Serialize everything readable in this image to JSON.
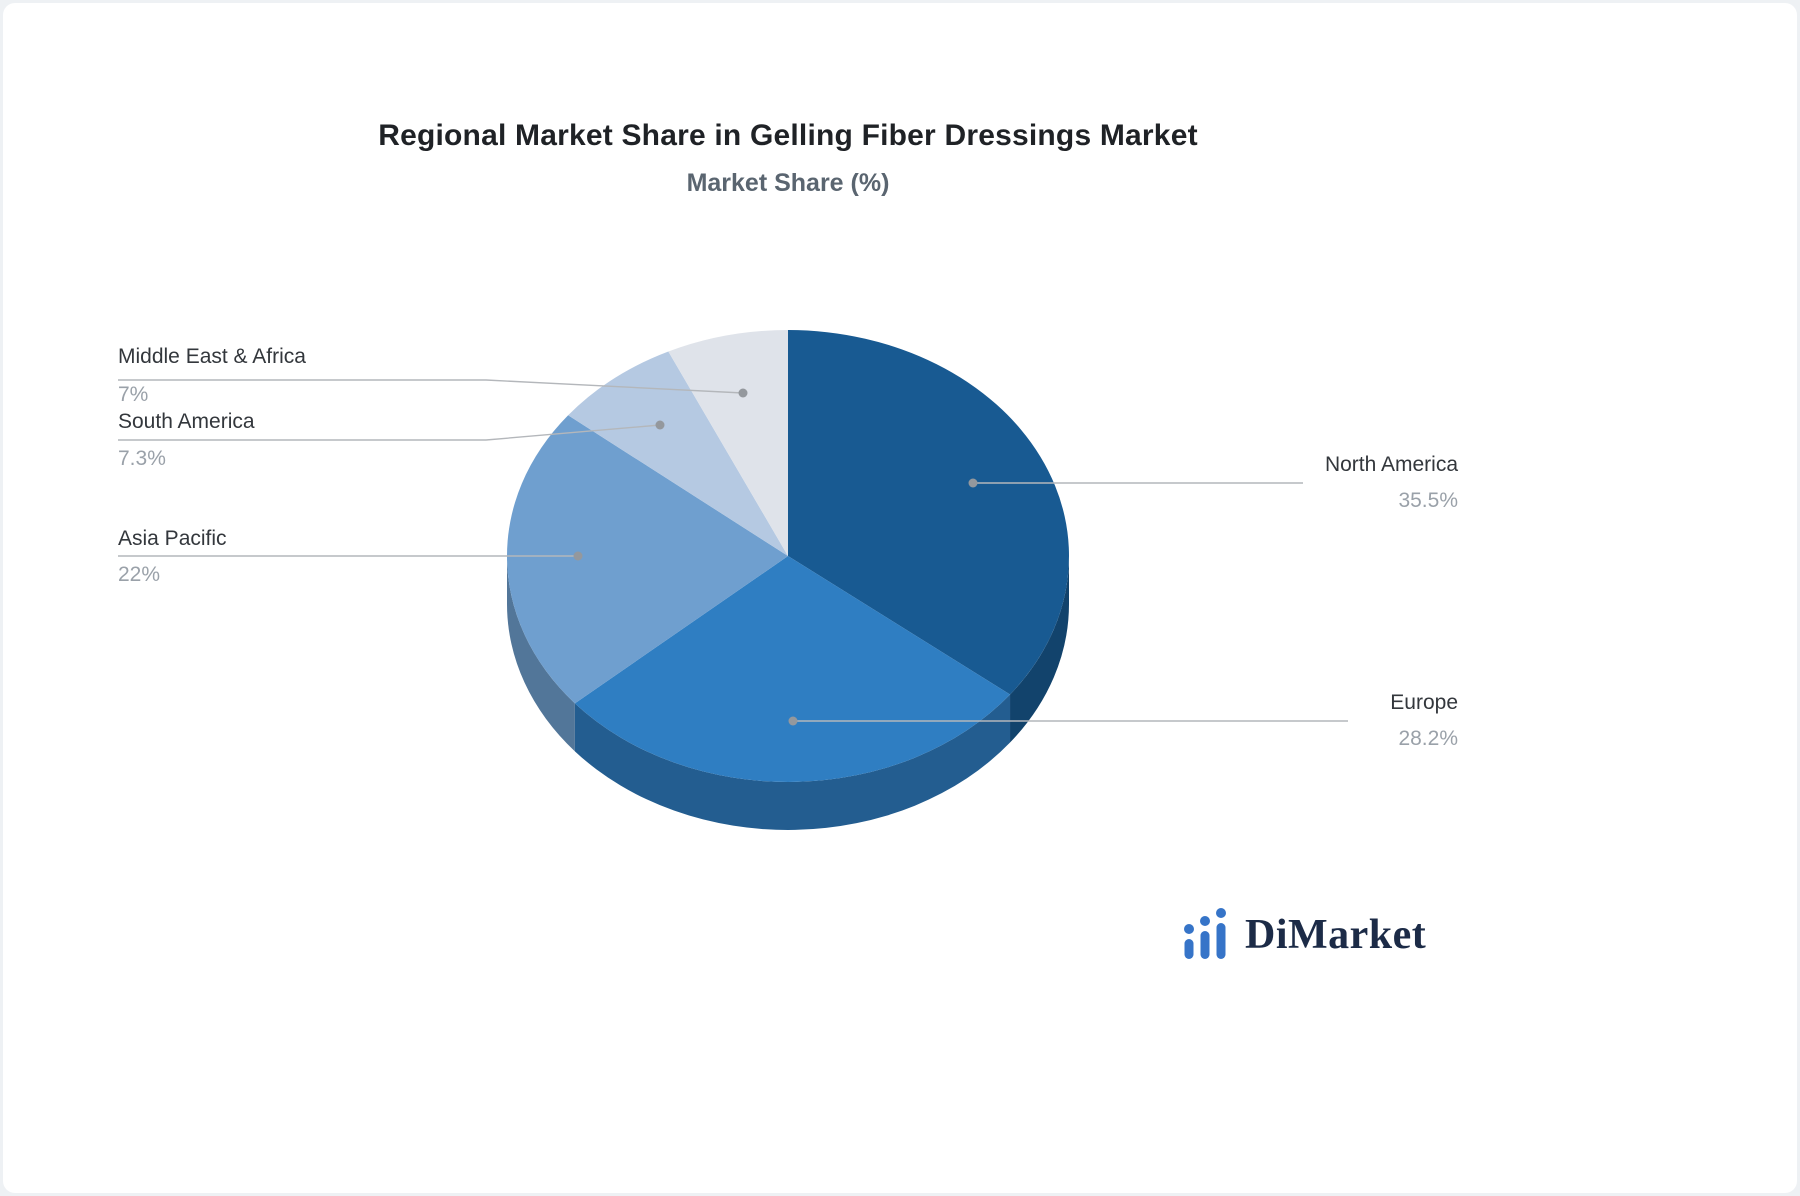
{
  "header": {
    "title": "Regional Market Share in Gelling Fiber Dressings Market",
    "subtitle": "Market Share (%)"
  },
  "chart_data": {
    "type": "pie",
    "title": "Regional Market Share in Gelling Fiber Dressings Market",
    "subtitle": "Market Share (%)",
    "unit": "%",
    "style": {
      "effect": "3d",
      "start_angle_deg": 0,
      "direction": "clockwise",
      "legend": "callout-labels"
    },
    "slices": [
      {
        "name": "North America",
        "value": 35.5,
        "label": "35.5%",
        "color": "#185a92"
      },
      {
        "name": "Europe",
        "value": 28.2,
        "label": "28.2%",
        "color": "#2f7ec2"
      },
      {
        "name": "Asia Pacific",
        "value": 22,
        "label": "22%",
        "color": "#6f9fcf"
      },
      {
        "name": "South America",
        "value": 7.3,
        "label": "7.3%",
        "color": "#b5c9e2"
      },
      {
        "name": "Middle East & Africa",
        "value": 7,
        "label": "7%",
        "color": "#dfe3ea"
      }
    ]
  },
  "logo": {
    "text": "DiMarket",
    "icon": "bar-chart-icon",
    "text_color": "#1c2b47",
    "icon_color": "#3674c8"
  },
  "colors": {
    "background": "#ffffff",
    "label_name": "#33373c",
    "label_value": "#9aa1a9",
    "leader_line": "#b4b7bb",
    "leader_dot": "#94989d"
  }
}
